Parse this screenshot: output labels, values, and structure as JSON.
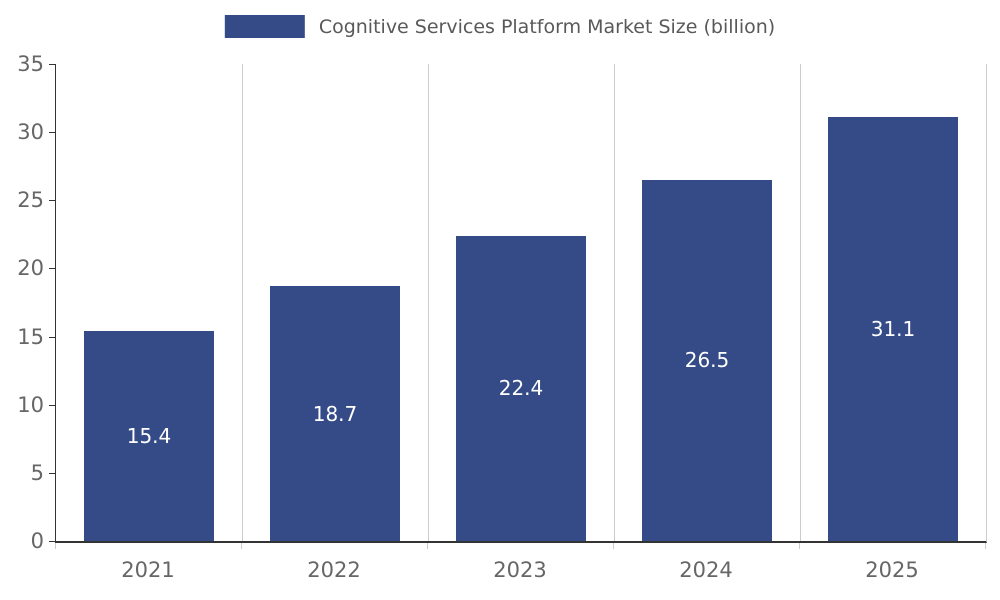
{
  "legend": {
    "label": "Cognitive Services Platform Market Size (billion)"
  },
  "colors": {
    "bar": "#344b87",
    "bar_value_text": "#ffffff",
    "legend_text": "#595959",
    "axis_text": "#666666",
    "grid": "#cccccc",
    "axis_line": "#333333",
    "background": "#ffffff"
  },
  "chart_data": {
    "type": "bar",
    "title": "Cognitive Services Platform Market Size (billion)",
    "categories": [
      "2021",
      "2022",
      "2023",
      "2024",
      "2025"
    ],
    "values": [
      15.4,
      18.7,
      22.4,
      26.5,
      31.1
    ],
    "value_labels": [
      "15.4",
      "18.7",
      "22.4",
      "26.5",
      "31.1"
    ],
    "xlabel": "",
    "ylabel": "",
    "ylim": [
      0,
      35
    ],
    "yticks": [
      0,
      5,
      10,
      15,
      20,
      25,
      30,
      35
    ],
    "legend_position": "top-center",
    "grid": "vertical-only",
    "bar_label_position": "inside-center"
  }
}
